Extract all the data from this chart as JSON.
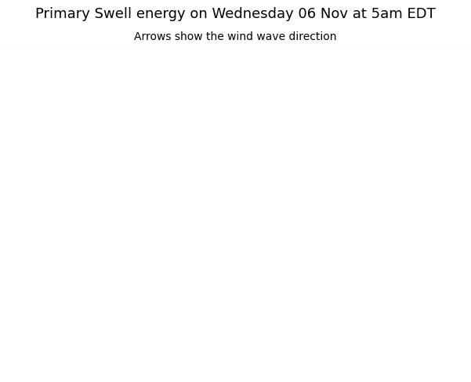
{
  "title": "Primary Swell energy on Wednesday 06 Nov at 5am EDT",
  "subtitle": "Arrows show the wind wave direction",
  "title_fontsize": 13,
  "subtitle_fontsize": 10,
  "bg_color": "#ffffff",
  "header_bg": "#f0f0f0",
  "map_bg": "#000000",
  "land_color": "#888888",
  "ocean_color": "#000000",
  "border_color": "#000000",
  "swell_colors": {
    "low": "#0000ff",
    "medium": "#00aaff",
    "high": "#00ffff",
    "very_high": "#ffff00",
    "extreme": "#ff8800"
  },
  "arrow_color": "#00ffcc",
  "figsize": [
    6.01,
    4.87
  ],
  "dpi": 100
}
